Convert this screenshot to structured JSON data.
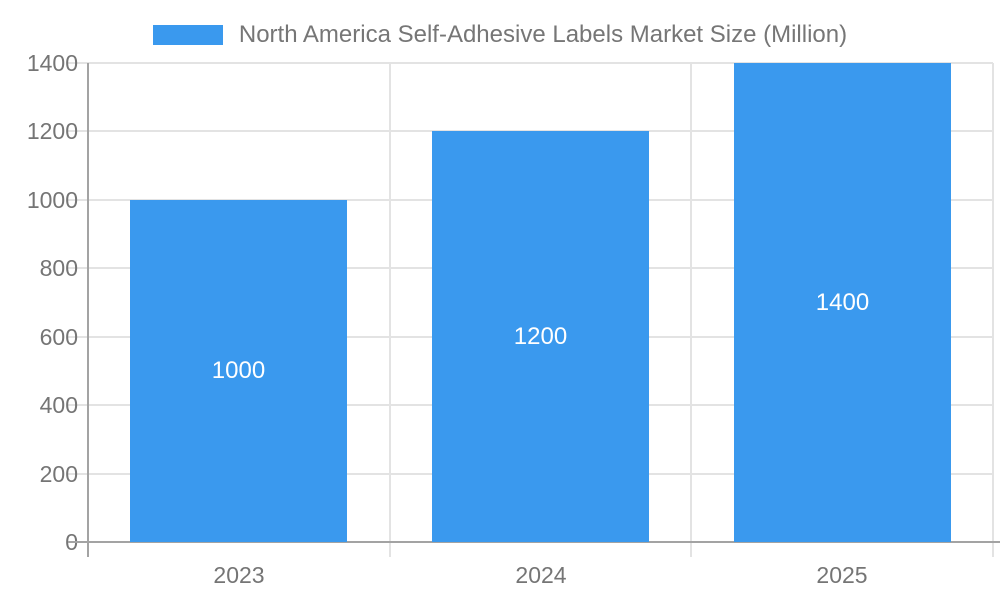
{
  "legend": {
    "label": "North America Self-Adhesive Labels Market Size (Million)"
  },
  "chart_data": {
    "type": "bar",
    "title": "North America Self-Adhesive Labels Market Size (Million)",
    "categories": [
      "2023",
      "2024",
      "2025"
    ],
    "values": [
      1000,
      1200,
      1400
    ],
    "series": [
      {
        "name": "North America Self-Adhesive Labels Market Size (Million)",
        "values": [
          1000,
          1200,
          1400
        ]
      }
    ],
    "xlabel": "",
    "ylabel": "",
    "ylim": [
      0,
      1400
    ],
    "y_ticks": [
      0,
      200,
      400,
      600,
      800,
      1000,
      1200,
      1400
    ],
    "grid": true,
    "legend_position": "top",
    "value_labels_inside_bars": true,
    "bar_color": "#3a99ee",
    "value_label_color": "#ffffff",
    "gridline_color": "#e3e3e3",
    "axis_line_color": "#a3a3a3",
    "tick_label_color": "#757575"
  }
}
